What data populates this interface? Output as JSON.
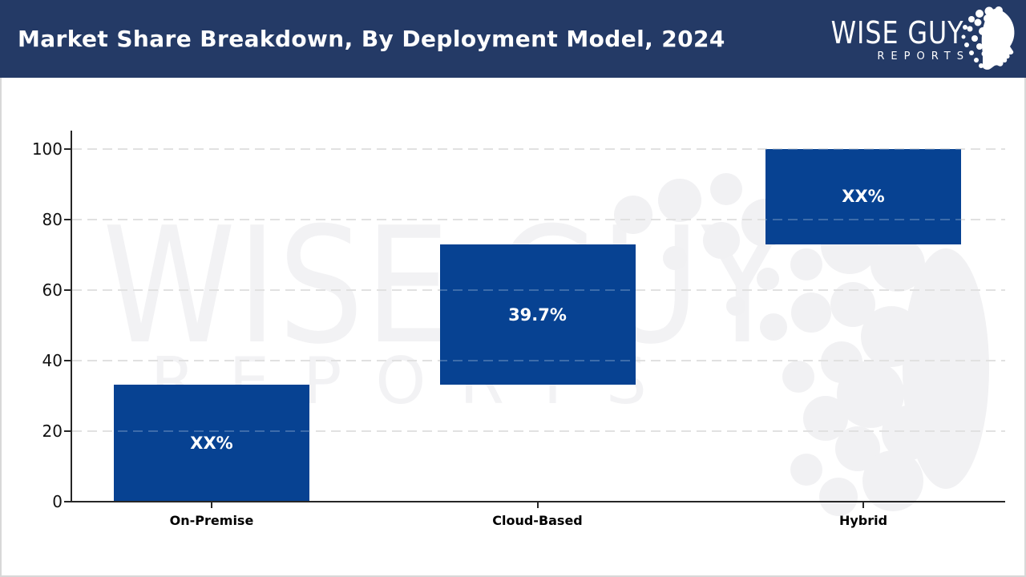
{
  "header": {
    "title": "Market Share Breakdown, By Deployment Model, 2024",
    "bg_color": "#243a66",
    "logo": {
      "wordmark": "WISE GUY",
      "subtext": "REPORTS"
    }
  },
  "watermark": {
    "line1": "WISE GUY",
    "line2": "REPORTS"
  },
  "chart_data": {
    "type": "bar",
    "variant": "floating-segment-waterfall",
    "title": "Market Share Breakdown, By Deployment Model, 2024",
    "categories": [
      "On-Premise",
      "Cloud-Based",
      "Hybrid"
    ],
    "bars": [
      {
        "category": "On-Premise",
        "start": 0,
        "end": 33.1,
        "label": "XX%"
      },
      {
        "category": "Cloud-Based",
        "start": 33.1,
        "end": 72.8,
        "label": "39.7%"
      },
      {
        "category": "Hybrid",
        "start": 72.8,
        "end": 100,
        "label": "XX%"
      }
    ],
    "xlabel": "",
    "ylabel": "",
    "ylim": [
      0,
      105
    ],
    "yticks": [
      0,
      20,
      40,
      60,
      80,
      100
    ],
    "grid": "horizontal-dashed",
    "legend": "none",
    "bar_color": "#074292",
    "bar_label_color": "#ffffff",
    "axis_color": "#262626",
    "grid_color": "#d9d9d9",
    "tick_label_color": "#111111"
  }
}
